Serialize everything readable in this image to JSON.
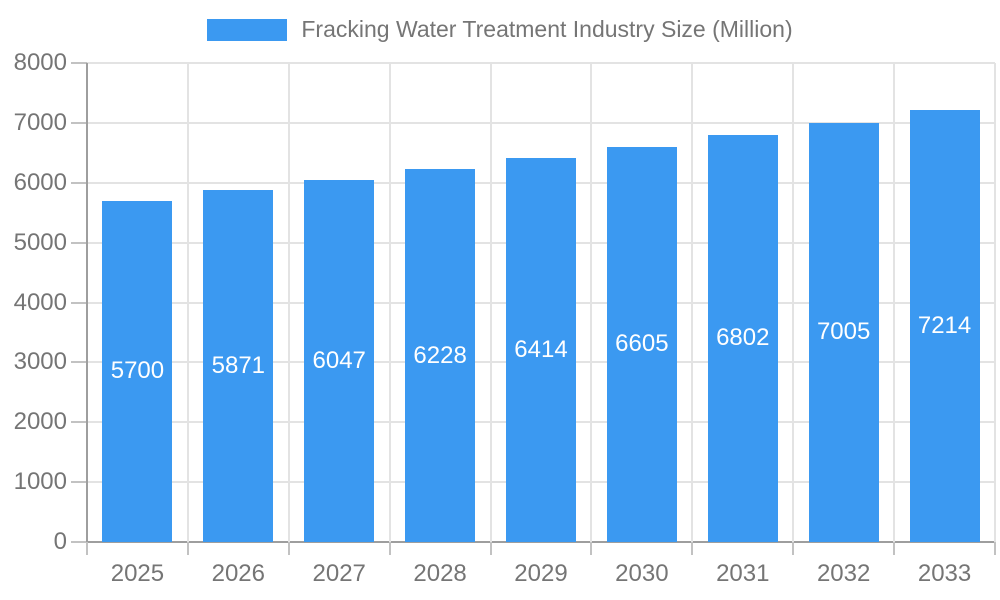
{
  "chart_data": {
    "type": "bar",
    "title": "Fracking Water Treatment Industry Size (Million)",
    "categories": [
      "2025",
      "2026",
      "2027",
      "2028",
      "2029",
      "2030",
      "2031",
      "2032",
      "2033"
    ],
    "values": [
      5700,
      5871,
      6047,
      6228,
      6414,
      6605,
      6802,
      7005,
      7214
    ],
    "xlabel": "",
    "ylabel": "",
    "ylim": [
      0,
      8000
    ],
    "ytick_step": 1000,
    "ytick_labels": [
      "0",
      "1000",
      "2000",
      "3000",
      "4000",
      "5000",
      "6000",
      "7000",
      "8000"
    ],
    "grid": "on",
    "legend_position": "top-center",
    "colors": {
      "bar": "#3B99F1",
      "bar_label_text": "#ffffff",
      "axis_text": "#757575",
      "legend_text": "#757575",
      "gridline": "#e3e3e3",
      "axis_line": "#9e9e9e",
      "tick_line": "#c2c2c2",
      "background": "#ffffff"
    }
  }
}
